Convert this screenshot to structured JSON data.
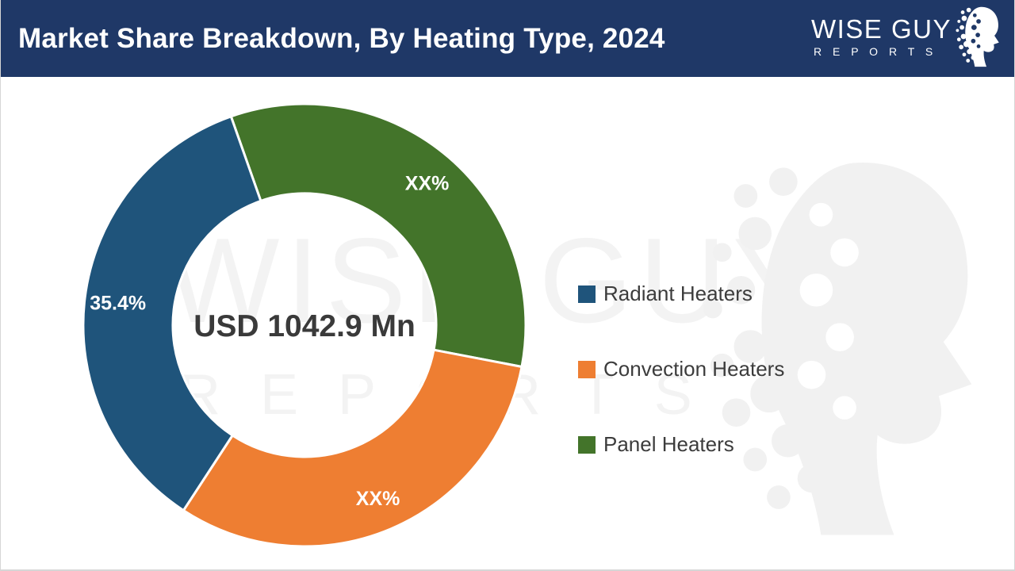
{
  "header": {
    "title": "Market Share Breakdown, By Heating Type, 2024",
    "bg_color": "#1F3867",
    "logo": {
      "line1": "WISE GUY",
      "line2": "R E P O R T S"
    }
  },
  "watermark": {
    "line1": "WISE GUY",
    "line2": "REPORTS"
  },
  "chart_data": {
    "type": "pie",
    "subtype": "donut",
    "title": "Market Share Breakdown, By Heating Type, 2024",
    "center_label": "USD 1042.9 Mn",
    "start_angle_deg": -19.4,
    "direction": "clockwise",
    "categories": [
      "Radiant Heaters",
      "Convection Heaters",
      "Panel Heaters"
    ],
    "slices": [
      {
        "name": "Panel Heaters",
        "value_pct": 33.4,
        "display_label": "XX%",
        "color": "#43742A"
      },
      {
        "name": "Convection Heaters",
        "value_pct": 31.2,
        "display_label": "XX%",
        "color": "#EE7E32"
      },
      {
        "name": "Radiant Heaters",
        "value_pct": 35.4,
        "display_label": "35.4%",
        "color": "#1F547B"
      }
    ],
    "legend_position": "right",
    "legend": [
      {
        "label": "Radiant Heaters",
        "color": "#1F547B"
      },
      {
        "label": "Convection Heaters",
        "color": "#EE7E32"
      },
      {
        "label": "Panel Heaters",
        "color": "#43742A"
      }
    ]
  },
  "colors": {
    "header_bg": "#1F3867",
    "center_text": "#3A3A3A",
    "legend_text": "#3C3C3C",
    "slice_label_text": "#FFFFFF",
    "watermark": "#F3F3F3"
  }
}
